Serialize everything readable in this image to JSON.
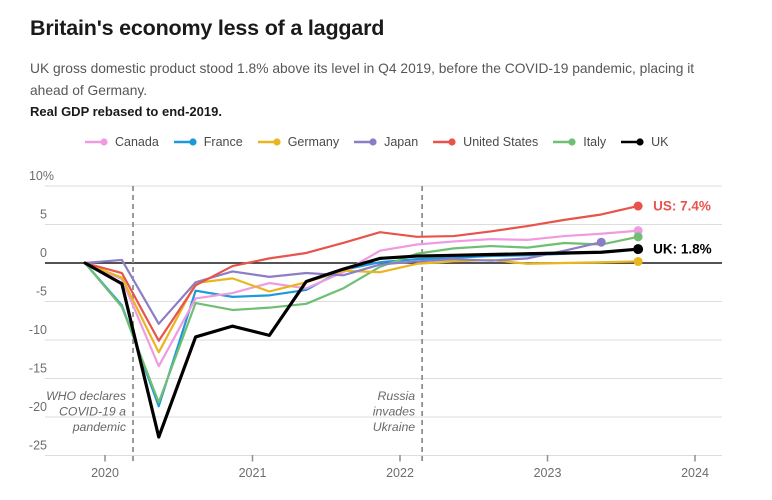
{
  "header": {
    "title": "Britain's economy less of a laggard",
    "subtitle": "UK gross domestic product stood 1.8% above its level in Q4 2019, before the COVID-19 pandemic, placing it ahead of Germany.",
    "kicker": "Real GDP rebased to end-2019."
  },
  "chart_data": {
    "type": "line",
    "title": "Real GDP rebased to end-2019.",
    "x_unit": "quarterly data points from Q4 2019 through Q3 2023 (Japan through Q2 2023)",
    "x_tick_labels": [
      "2020",
      "2021",
      "2022",
      "2023",
      "2024"
    ],
    "y_axis": {
      "unit": "%",
      "tick_labels": [
        "10%",
        "5",
        "0",
        "-5",
        "-10",
        "-15",
        "-20",
        "-25"
      ],
      "tick_values": [
        10,
        5,
        0,
        -5,
        -10,
        -15,
        -20,
        -25
      ],
      "ylim": [
        -25,
        10
      ]
    },
    "grid": "horizontal",
    "legend_position": "top",
    "series": [
      {
        "id": "canada",
        "name": "Canada",
        "color": "#f09be0",
        "values": [
          0,
          -2.1,
          -13.4,
          -4.6,
          -3.9,
          -2.6,
          -3.3,
          -1.2,
          1.6,
          2.4,
          2.8,
          3.1,
          3.0,
          3.5,
          3.8,
          4.2
        ]
      },
      {
        "id": "france",
        "name": "France",
        "color": "#1d99da",
        "values": [
          0,
          -5.5,
          -18.6,
          -3.6,
          -4.4,
          -4.2,
          -3.5,
          -0.9,
          0.1,
          0.5,
          0.7,
          0.9,
          1.0,
          1.2,
          1.4,
          1.8
        ]
      },
      {
        "id": "germany",
        "name": "Germany",
        "color": "#e9b61f",
        "values": [
          0,
          -1.9,
          -11.6,
          -2.6,
          -2.0,
          -3.7,
          -2.5,
          -1.0,
          -1.2,
          -0.1,
          0.2,
          0.4,
          -0.1,
          0.0,
          0.1,
          0.2
        ]
      },
      {
        "id": "japan",
        "name": "Japan",
        "color": "#8c7ec5",
        "values": [
          0,
          0.4,
          -7.9,
          -2.5,
          -1.1,
          -1.8,
          -1.3,
          -1.6,
          -0.2,
          0.2,
          0.5,
          0.3,
          0.6,
          1.6,
          2.7
        ]
      },
      {
        "id": "united-states",
        "name": "United States",
        "color": "#e8544b",
        "values": [
          0,
          -1.3,
          -10.1,
          -2.9,
          -0.4,
          0.6,
          1.3,
          2.6,
          4.0,
          3.4,
          3.5,
          4.1,
          4.8,
          5.6,
          6.3,
          7.4
        ]
      },
      {
        "id": "italy",
        "name": "Italy",
        "color": "#6fbf73",
        "values": [
          0,
          -5.7,
          -18.1,
          -5.2,
          -6.1,
          -5.8,
          -5.3,
          -3.3,
          -0.5,
          1.2,
          1.9,
          2.2,
          2.0,
          2.6,
          2.4,
          3.4
        ]
      },
      {
        "id": "uk",
        "name": "UK",
        "color": "#000000",
        "values": [
          0,
          -2.7,
          -22.6,
          -9.6,
          -8.2,
          -9.4,
          -2.4,
          -0.8,
          0.6,
          0.9,
          1.0,
          1.1,
          1.2,
          1.3,
          1.4,
          1.8
        ]
      }
    ],
    "end_labels": [
      {
        "series": "United States",
        "label": "US: 7.4%"
      },
      {
        "series": "UK",
        "label": "UK: 1.8%"
      }
    ],
    "annotations": [
      {
        "lines": [
          "WHO declares",
          "COVID-19 a",
          "pandemic"
        ],
        "x_year": 2020.19
      },
      {
        "lines": [
          "Russia",
          "invades",
          "Ukraine"
        ],
        "x_year": 2022.15
      }
    ]
  }
}
